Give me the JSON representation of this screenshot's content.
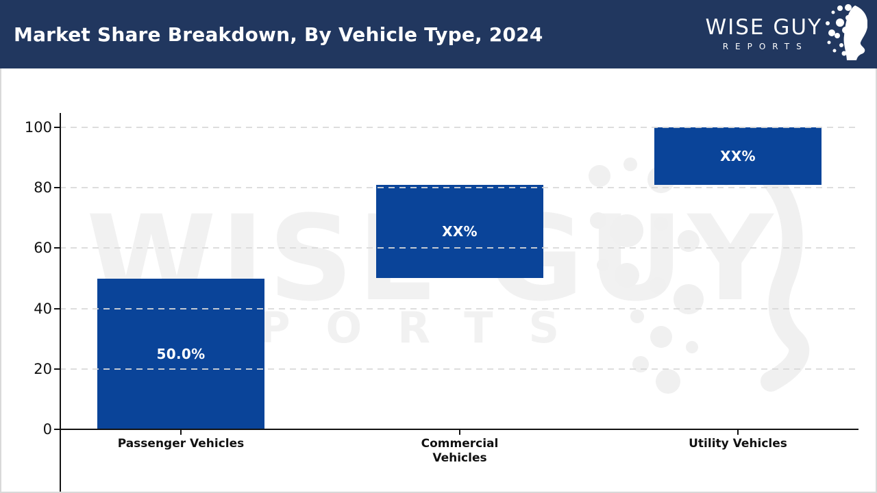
{
  "header": {
    "title": "Market Share Breakdown, By Vehicle Type, 2024",
    "background_color": "#21375f",
    "logo": {
      "line1": "WISE GUY",
      "line2": "REPORTS",
      "icon": "dotted-face-profile"
    }
  },
  "watermark": {
    "line1": "WISE GUY",
    "line2": "REPORTS",
    "icon": "dotted-face-profile",
    "color": "#f1f1f1"
  },
  "chart_data": {
    "type": "bar",
    "subtype": "waterfall",
    "title": "Market Share Breakdown, By Vehicle Type, 2024",
    "categories": [
      "Passenger Vehicles",
      "Commercial\nVehicles",
      "Utility Vehicles"
    ],
    "series": [
      {
        "name": "Market share (%)",
        "values": [
          50.0,
          31.0,
          19.0
        ],
        "starts": [
          0,
          50,
          81
        ],
        "ends": [
          50,
          81,
          100
        ]
      }
    ],
    "bar_labels": [
      "50.0%",
      "XX%",
      "XX%"
    ],
    "yticks": [
      0,
      20,
      40,
      60,
      80,
      100
    ],
    "ylim": [
      0,
      105
    ],
    "xlabel": "",
    "ylabel": "",
    "grid": "horizontal-dashed",
    "grid_color": "#d9d9d9",
    "legend": "none",
    "bar_color": "#0a4499",
    "bar_label_color": "#ffffff",
    "axis_color": "#111111"
  }
}
